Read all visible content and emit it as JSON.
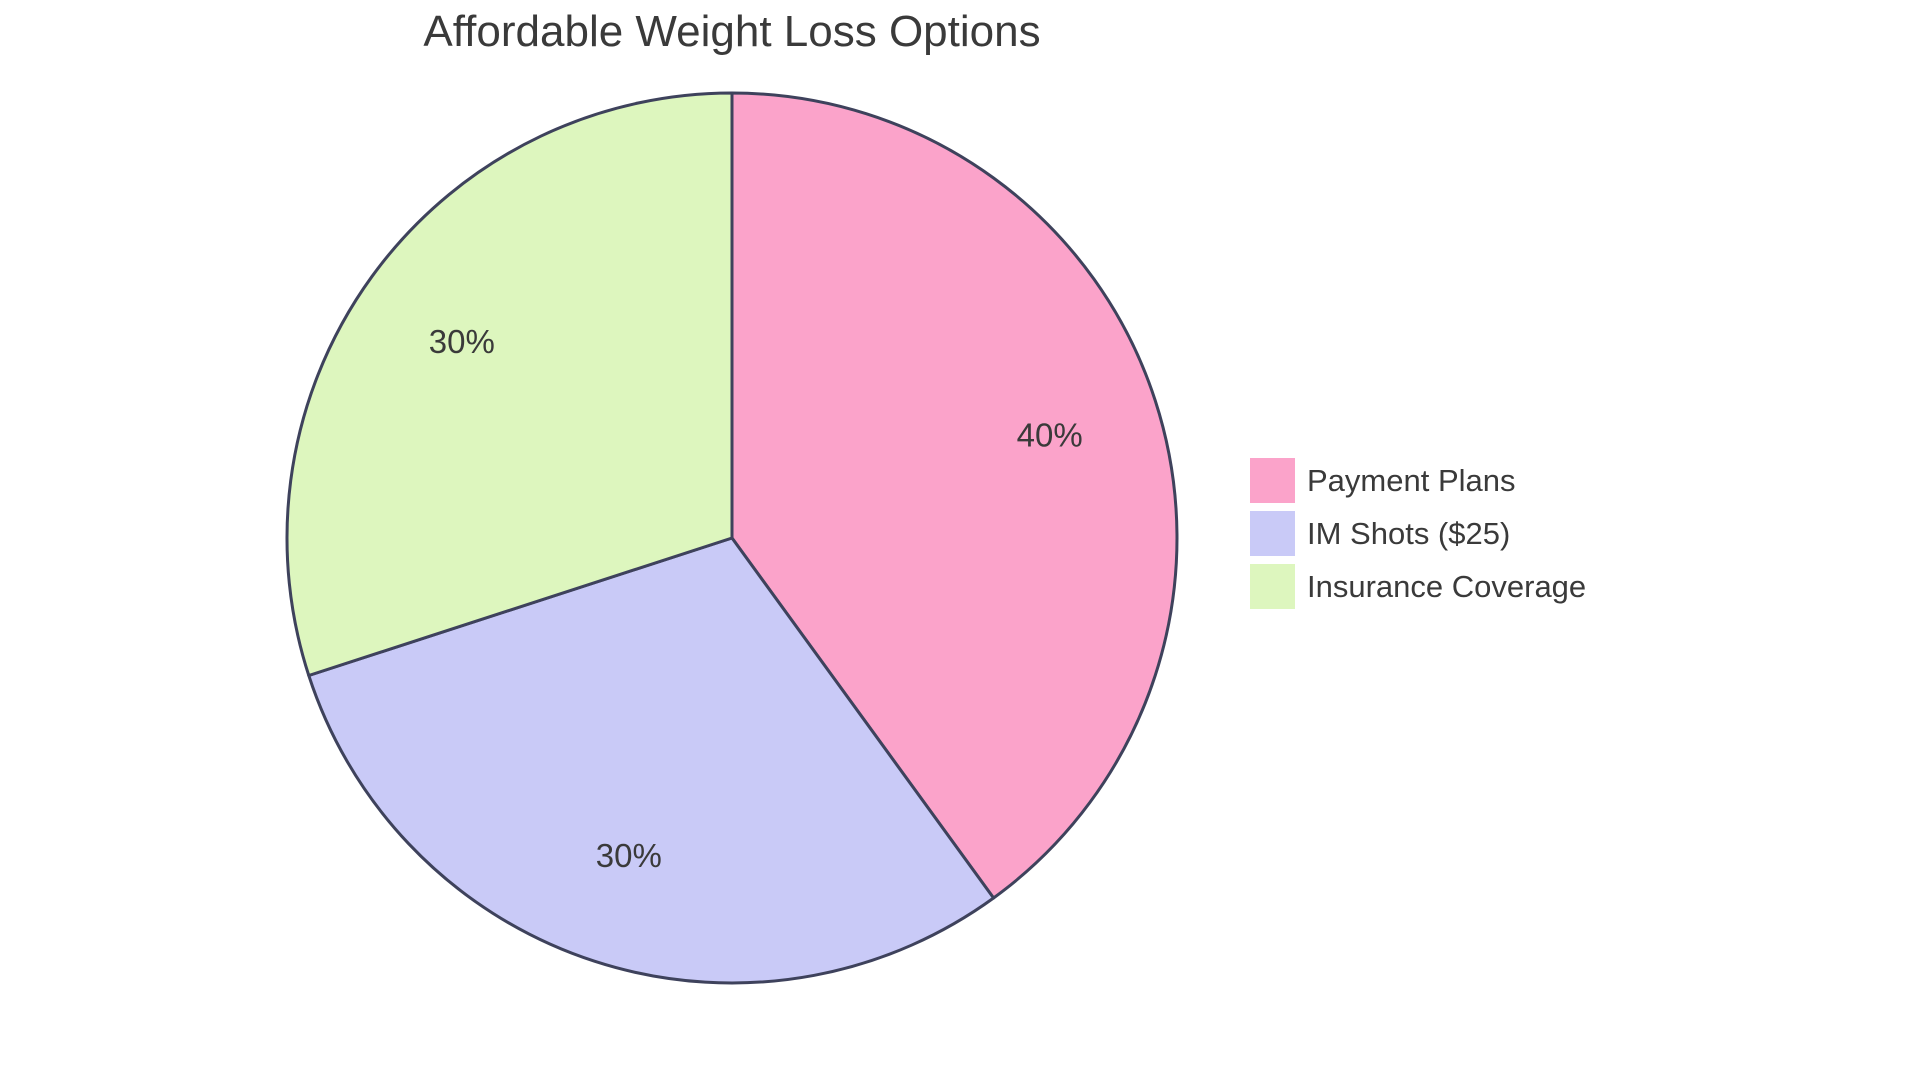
{
  "chart_data": {
    "type": "pie",
    "title": "Affordable Weight Loss Options",
    "labels": [
      "Payment Plans",
      "IM Shots ($25)",
      "Insurance Coverage"
    ],
    "values": [
      40,
      30,
      30
    ],
    "slice_labels": [
      "40%",
      "30%",
      "30%"
    ],
    "colors": [
      "#FBA3CA",
      "#C9CAF7",
      "#DDF6BE"
    ],
    "slice_border_color": "#3E425C",
    "label_color": "#3A3A3A",
    "title_color": "#3A3A3A",
    "background_color": "#FFFFFF",
    "legend_position": "right",
    "start_angle": "top",
    "direction": "clockwise"
  }
}
